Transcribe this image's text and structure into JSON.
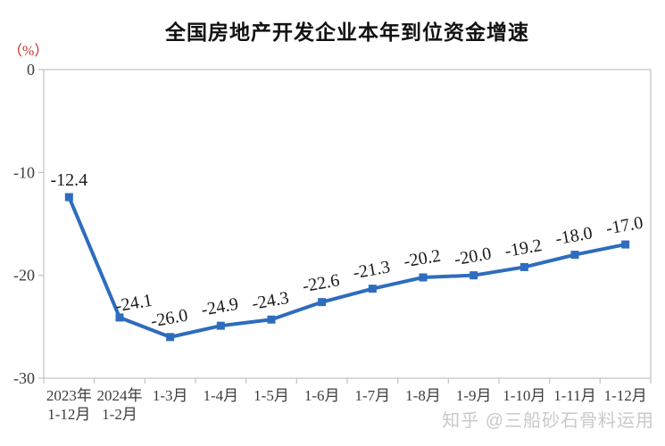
{
  "watermark": "知乎 @三船砂石骨料运用",
  "chart_data": {
    "type": "line",
    "title": "全国房地产开发企业本年到位资金增速",
    "ylabel": "（%）",
    "xlabel": "",
    "ylim": [
      -30,
      0
    ],
    "y_ticks": [
      0,
      -10,
      -20,
      -30
    ],
    "grid": false,
    "legend": "none",
    "categories": [
      [
        "2023年",
        "1-12月"
      ],
      [
        "2024年",
        "1-2月"
      ],
      [
        "1-3月"
      ],
      [
        "1-4月"
      ],
      [
        "1-5月"
      ],
      [
        "1-6月"
      ],
      [
        "1-7月"
      ],
      [
        "1-8月"
      ],
      [
        "1-9月"
      ],
      [
        "1-10月"
      ],
      [
        "1-11月"
      ],
      [
        "1-12月"
      ]
    ],
    "values": [
      -12.4,
      -24.1,
      -26.0,
      -24.9,
      -24.3,
      -22.6,
      -21.3,
      -20.2,
      -20.0,
      -19.2,
      -18.0,
      -17.0
    ],
    "point_labels": [
      "-12.4",
      "-24.1",
      "-26.0",
      "-24.9",
      "-24.3",
      "-22.6",
      "-21.3",
      "-20.2",
      "-20.0",
      "-19.2",
      "-18.0",
      "-17.0"
    ],
    "marker": "square",
    "colors": {
      "line": "#2e6cbd",
      "marker": "#2e6cbd",
      "frame": "#c6c6c6",
      "tick_label": "#3d3d3d",
      "point_label": "#1a1a1a",
      "unit_label": "#cb2b26",
      "title": "#111111",
      "watermark": "#c9c9c9",
      "background": "#ffffff"
    }
  }
}
